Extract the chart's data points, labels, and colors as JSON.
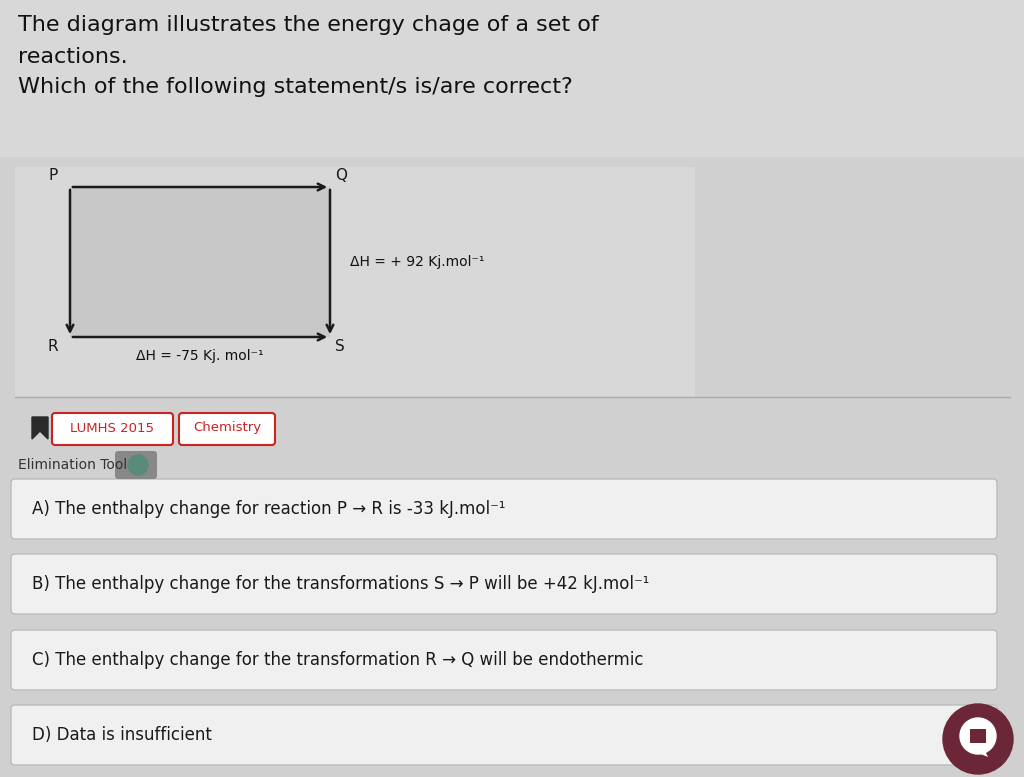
{
  "title_line1": "The diagram illustrates the energy chage of a set of",
  "title_line2": "reactions.",
  "title_line3": "Which of the following statement/s is/are correct?",
  "bg_color": "#d8d8d8",
  "content_bg": "#e8e8e8",
  "arrow_color": "#1a1a1a",
  "label_P": "P",
  "label_Q": "Q",
  "label_R": "R",
  "label_S": "S",
  "dh_right": "ΔH = + 92 Kj.mol⁻¹",
  "dh_bottom": "ΔH = -75 Kj. mol⁻¹",
  "tag1": "LUMHS 2015",
  "tag2": "Chemistry",
  "tag_color": "#cc2222",
  "elim_text": "Elimination Tool:",
  "options": [
    "A) The enthalpy change for reaction P → R is -33 kJ.mol⁻¹",
    "B) The enthalpy change for the transformations S → P will be +42 kJ.mol⁻¹",
    "C) The enthalpy change for the transformation R → Q will be endothermic",
    "D) Data is insufficient"
  ],
  "option_box_color": "#f0f0f0",
  "option_border_color": "#bbbbbb",
  "chat_icon_color": "#6b2737",
  "diag_fill": "#c8c8c8"
}
